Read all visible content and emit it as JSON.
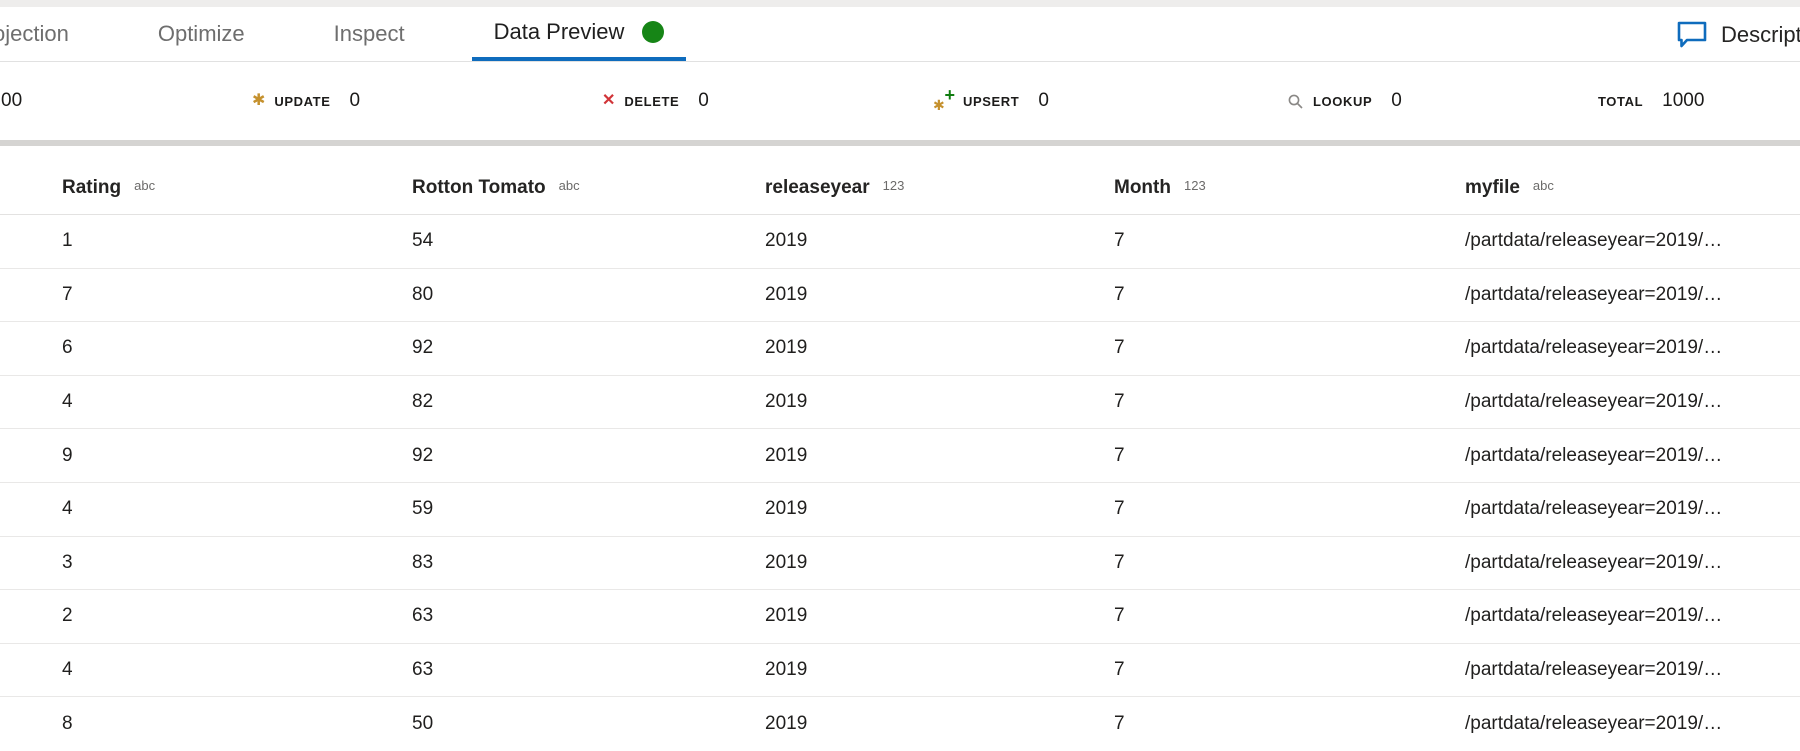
{
  "tabs_bar": {
    "tabs": [
      {
        "id": "projection",
        "label": "Projection",
        "active": false
      },
      {
        "id": "optimize",
        "label": "Optimize",
        "active": false
      },
      {
        "id": "inspect",
        "label": "Inspect",
        "active": false
      },
      {
        "id": "data-preview",
        "label": "Data Preview",
        "active": true,
        "status_dot_color": "#168516"
      }
    ],
    "active_underline_color": "#0f6cbd",
    "description_button": {
      "label": "Description",
      "icon": "comment-icon",
      "icon_color": "#0f6cbd"
    }
  },
  "stats_bar": {
    "clipped_left_count": "00",
    "items": [
      {
        "id": "update",
        "icon": "asterisk-icon",
        "icon_color": "#c5912e",
        "label": "UPDATE",
        "value": "0"
      },
      {
        "id": "delete",
        "icon": "x-icon",
        "icon_color": "#d13438",
        "label": "DELETE",
        "value": "0"
      },
      {
        "id": "upsert",
        "icon": "asterisk-plus-icon",
        "icon_color": "#c5912e",
        "plus_color": "#107c10",
        "label": "UPSERT",
        "value": "0"
      },
      {
        "id": "lookup",
        "icon": "magnifier-icon",
        "icon_color": "#8a8886",
        "label": "LOOKUP",
        "value": "0"
      },
      {
        "id": "total",
        "icon": "none",
        "label": "TOTAL",
        "value": "1000"
      }
    ]
  },
  "table": {
    "columns": [
      {
        "name": "Rating",
        "type_badge": "abc"
      },
      {
        "name": "Rotton Tomato",
        "type_badge": "abc"
      },
      {
        "name": "releaseyear",
        "type_badge": "123"
      },
      {
        "name": "Month",
        "type_badge": "123"
      },
      {
        "name": "myfile",
        "type_badge": "abc"
      }
    ],
    "rows": [
      [
        "1",
        "54",
        "2019",
        "7",
        "/partdata/releaseyear=2019/…"
      ],
      [
        "7",
        "80",
        "2019",
        "7",
        "/partdata/releaseyear=2019/…"
      ],
      [
        "6",
        "92",
        "2019",
        "7",
        "/partdata/releaseyear=2019/…"
      ],
      [
        "4",
        "82",
        "2019",
        "7",
        "/partdata/releaseyear=2019/…"
      ],
      [
        "9",
        "92",
        "2019",
        "7",
        "/partdata/releaseyear=2019/…"
      ],
      [
        "4",
        "59",
        "2019",
        "7",
        "/partdata/releaseyear=2019/…"
      ],
      [
        "3",
        "83",
        "2019",
        "7",
        "/partdata/releaseyear=2019/…"
      ],
      [
        "2",
        "63",
        "2019",
        "7",
        "/partdata/releaseyear=2019/…"
      ],
      [
        "4",
        "63",
        "2019",
        "7",
        "/partdata/releaseyear=2019/…"
      ],
      [
        "8",
        "50",
        "2019",
        "7",
        "/partdata/releaseyear=2019/…"
      ]
    ]
  }
}
